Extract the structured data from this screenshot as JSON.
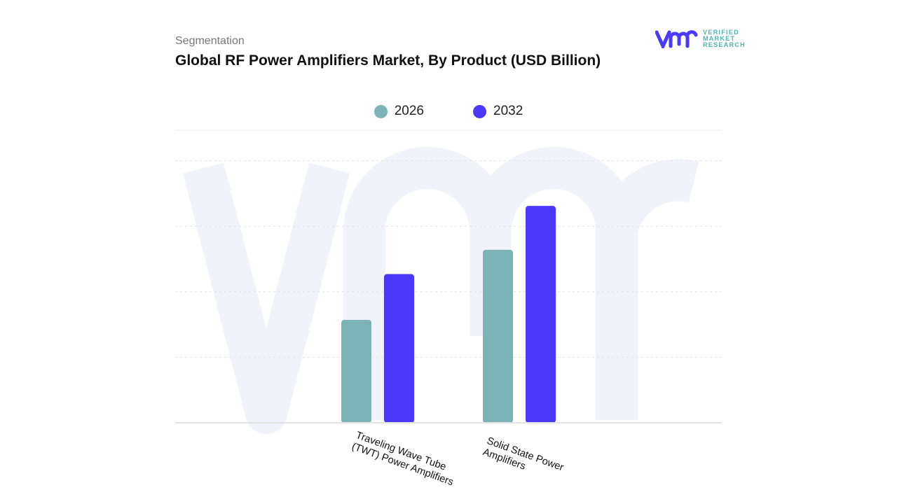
{
  "header": {
    "subtitle": "Segmentation",
    "title": "Global RF Power Amplifiers Market, By Product (USD Billion)"
  },
  "logo": {
    "line1": "VERIFIED",
    "line2": "MARKET",
    "line3": "RESEARCH",
    "color": "#4a3aff"
  },
  "chart_data": {
    "type": "bar",
    "title": "Global RF Power Amplifiers Market, By Product (USD Billion)",
    "categories": [
      "Traveling Wave Tube (TWT) Power Amplifiers",
      "Solid State Power Amplifiers"
    ],
    "category_lines": [
      [
        "Traveling Wave Tube",
        "(TWT) Power Amplifiers"
      ],
      [
        "Solid State Power",
        "Amplifiers"
      ]
    ],
    "series": [
      {
        "name": "2026",
        "color": "#7bb3b6",
        "values": [
          1.57,
          2.64
        ]
      },
      {
        "name": "2032",
        "color": "#4b38fb",
        "values": [
          2.27,
          3.31
        ]
      }
    ],
    "ylim": [
      0,
      4
    ],
    "y_tick_labels_shown": false,
    "grid": true,
    "legend": "top-center",
    "xlabel": "",
    "ylabel": ""
  }
}
